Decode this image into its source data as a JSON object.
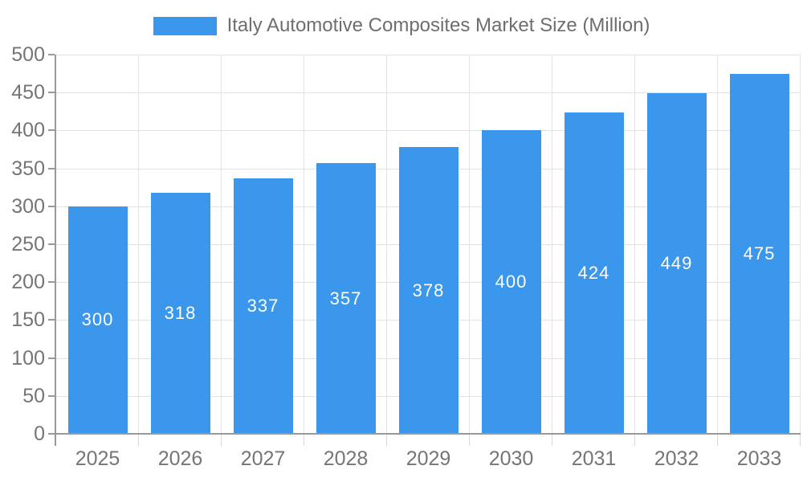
{
  "chart_data": {
    "type": "bar",
    "title": "Italy Automotive Composites Market Size (Million)",
    "categories": [
      "2025",
      "2026",
      "2027",
      "2028",
      "2029",
      "2030",
      "2031",
      "2032",
      "2033"
    ],
    "values": [
      300,
      318,
      337,
      357,
      378,
      400,
      424,
      449,
      475
    ],
    "xlabel": "",
    "ylabel": "",
    "ylim": [
      0,
      500
    ],
    "ytick_step": 50,
    "grid": "both",
    "legend_position": "top-center",
    "bar_label_position": "center-inside",
    "colors": {
      "bar": "#3B97EC",
      "axis": "#999999",
      "grid": "#E3E3E3",
      "xtick": "#D9D9D9",
      "tick_label": "#757575",
      "title_text": "#6E6E6E",
      "bar_label": "#FFFFFF",
      "background": "#FFFFFF"
    }
  }
}
